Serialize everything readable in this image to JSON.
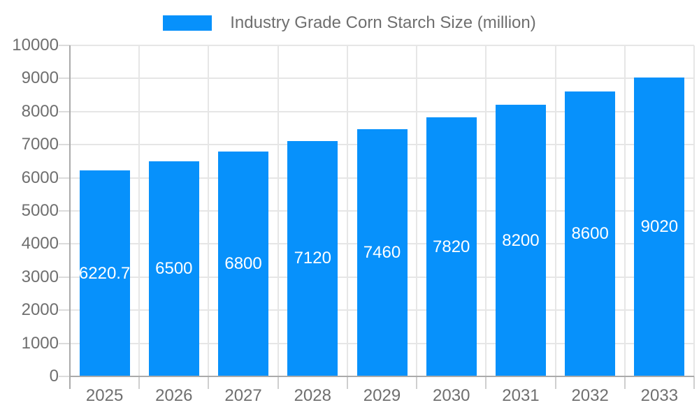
{
  "chart_data": {
    "type": "bar",
    "title": "Industry Grade Corn Starch Size (million)",
    "categories": [
      "2025",
      "2026",
      "2027",
      "2028",
      "2029",
      "2030",
      "2031",
      "2032",
      "2033"
    ],
    "values": [
      6220.7,
      6500,
      6800,
      7120,
      7460,
      7820,
      8200,
      8600,
      9020
    ],
    "bar_labels": [
      "6220.7",
      "6500",
      "6800",
      "7120",
      "7460",
      "7820",
      "8200",
      "8600",
      "9020"
    ],
    "xlabel": "",
    "ylabel": "",
    "ylim": [
      0,
      10000
    ],
    "y_ticks": [
      0,
      1000,
      2000,
      3000,
      4000,
      5000,
      6000,
      7000,
      8000,
      9000,
      10000
    ],
    "grid": true,
    "legend_position": "top",
    "value_label_position": "center-inside",
    "colors": {
      "bar": "#0791FB",
      "text": "#6F6F6F",
      "grid": "#E6E6E6",
      "axis": "#AAAAAA",
      "y_tick_mark": "#DCDCDC",
      "x_tick_mark": "#CFCFCF",
      "value_label": "#FFFFFF",
      "background": "#FFFFFF"
    }
  }
}
